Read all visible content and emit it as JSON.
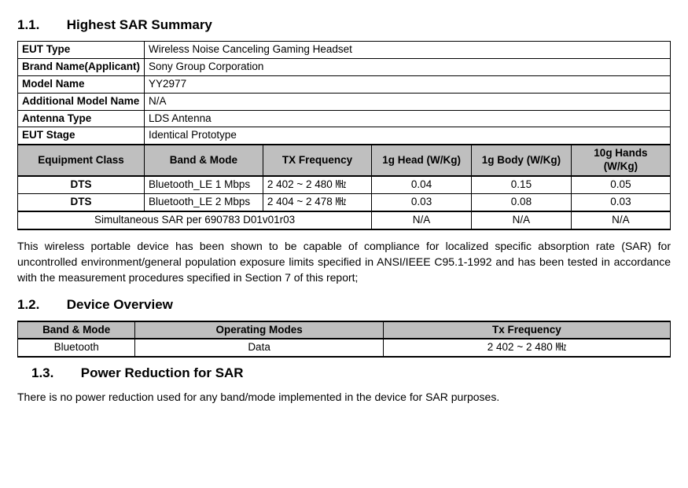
{
  "sections": {
    "s11_num": "1.1.",
    "s11_title": "Highest SAR Summary",
    "s12_num": "1.2.",
    "s12_title": "Device  Overview",
    "s13_num": "1.3.",
    "s13_title": "Power Reduction for SAR"
  },
  "info": {
    "eut_type_label": "EUT Type",
    "eut_type": "Wireless Noise Canceling Gaming Headset",
    "brand_label": "Brand Name(Applicant)",
    "brand": "Sony Group Corporation",
    "model_label": "Model Name",
    "model": "YY2977",
    "addl_model_label": "Additional Model Name",
    "addl_model": "N/A",
    "antenna_label": "Antenna Type",
    "antenna": "LDS Antenna",
    "stage_label": "EUT Stage",
    "stage": "Identical Prototype"
  },
  "sar": {
    "headers": {
      "class": "Equipment Class",
      "band": "Band & Mode",
      "tx": "TX Frequency",
      "head": "1g Head (W/Kg)",
      "body": "1g Body (W/Kg)",
      "hands": "10g Hands (W/Kg)"
    },
    "rows": [
      {
        "class": "DTS",
        "band": "Bluetooth_LE 1 Mbps",
        "tx": "2 402 ~ 2 480  ㎒",
        "head": "0.04",
        "body": "0.15",
        "hands": "0.05"
      },
      {
        "class": "DTS",
        "band": "Bluetooth_LE 2 Mbps",
        "tx": "2 404 ~ 2 478  ㎒",
        "head": "0.03",
        "body": "0.08",
        "hands": "0.03"
      }
    ],
    "sim_label": "Simultaneous SAR per 690783 D01v01r03",
    "sim_head": "N/A",
    "sim_body": "N/A",
    "sim_hands": "N/A"
  },
  "paragraphs": {
    "compliance": "This wireless portable device has been shown to be capable of compliance for localized specific absorption rate (SAR) for uncontrolled environment/general population exposure limits specified in ANSI/IEEE C95.1-1992 and has been tested in accordance with the measurement procedures specified in Section 7 of this report;",
    "power": "There is no power reduction used for any band/mode implemented in the device for SAR purposes."
  },
  "overview": {
    "headers": {
      "band": "Band & Mode",
      "modes": "Operating Modes",
      "tx": "Tx Frequency"
    },
    "row": {
      "band": "Bluetooth",
      "modes": "Data",
      "tx": "2 402 ~ 2 480  ㎒"
    }
  }
}
